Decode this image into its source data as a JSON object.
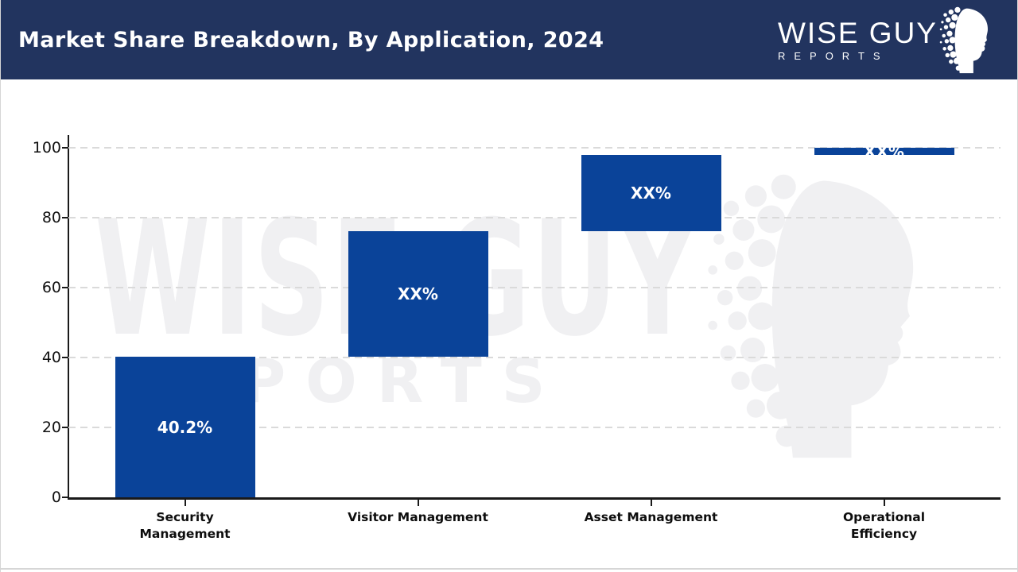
{
  "header": {
    "title": "Market Share Breakdown, By Application, 2024",
    "bg_color": "#22345f",
    "logo": {
      "line1": "WISE GUY",
      "line2": "REPORTS"
    }
  },
  "watermark": {
    "line1": "WISE GUY",
    "line2": "REPORTS"
  },
  "chart_data": {
    "type": "bar",
    "subtype": "waterfall",
    "title": "Market Share Breakdown, By Application, 2024",
    "categories": [
      "Security\nManagement",
      "Visitor Management",
      "Asset Management",
      "Operational\nEfficiency"
    ],
    "values": [
      40.2,
      36.0,
      21.7,
      2.1
    ],
    "cumulative": [
      40.2,
      76.2,
      97.9,
      100
    ],
    "segments": [
      {
        "category": "Security Management",
        "from": 0,
        "to": 40.2,
        "label": "40.2%"
      },
      {
        "category": "Visitor Management",
        "from": 40.2,
        "to": 76.2,
        "label": "XX%"
      },
      {
        "category": "Asset Management",
        "from": 76.2,
        "to": 97.9,
        "label": "XX%"
      },
      {
        "category": "Operational Efficiency",
        "from": 97.9,
        "to": 100,
        "label": "XX%"
      }
    ],
    "ylim": [
      0,
      100
    ],
    "yticks": [
      0,
      20,
      40,
      60,
      80,
      100
    ],
    "xlabel": "",
    "ylabel": "",
    "grid": "horizontal-dashed",
    "legend": "none",
    "bar_color": "#0a4399",
    "bar_label_color": "#ffffff",
    "axis_color": "#1a1a1a",
    "grid_color": "#dadada"
  }
}
